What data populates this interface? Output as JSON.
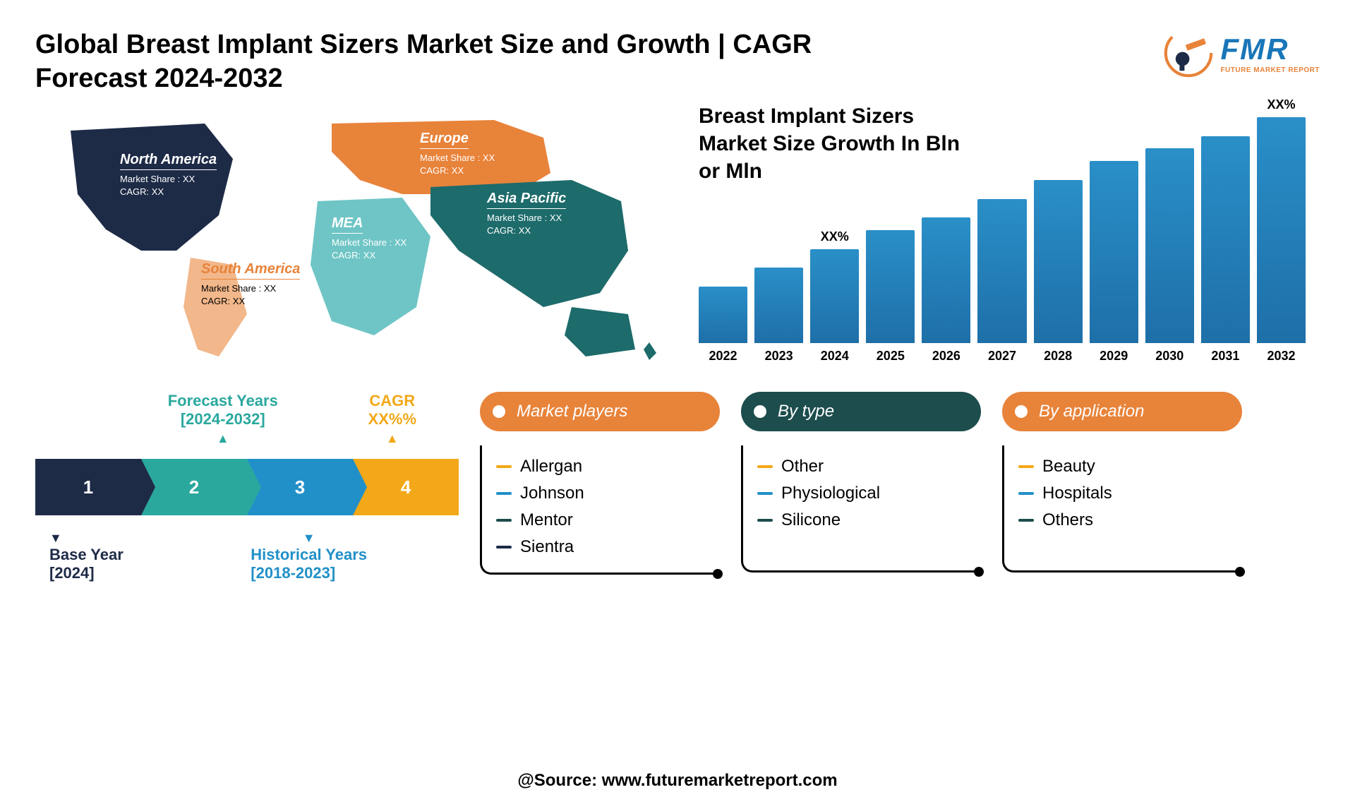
{
  "title": "Global Breast Implant Sizers Market Size and Growth | CAGR Forecast 2024-2032",
  "logo": {
    "main": "FMR",
    "sub": "FUTURE MARKET REPORT"
  },
  "map": {
    "regions": [
      {
        "name": "North America",
        "share": "Market Share : XX",
        "cagr": "CAGR: XX",
        "color": "#1e2b47"
      },
      {
        "name": "South America",
        "share": "Market Share : XX",
        "cagr": "CAGR: XX",
        "color": "#f2b78a"
      },
      {
        "name": "Europe",
        "share": "Market Share : XX",
        "cagr": "CAGR: XX",
        "color": "#e8833a"
      },
      {
        "name": "MEA",
        "share": "Market Share : XX",
        "cagr": "CAGR: XX",
        "color": "#6fc5c5"
      },
      {
        "name": "Asia Pacific",
        "share": "Market Share : XX",
        "cagr": "CAGR: XX",
        "color": "#1d6b6b"
      }
    ]
  },
  "barChart": {
    "title": "Breast Implant Sizers Market Size Growth In Bln or Mln",
    "type": "bar",
    "categories": [
      "2022",
      "2023",
      "2024",
      "2025",
      "2026",
      "2027",
      "2028",
      "2029",
      "2030",
      "2031",
      "2032"
    ],
    "values": [
      90,
      120,
      150,
      180,
      200,
      230,
      260,
      290,
      310,
      330,
      360
    ],
    "ylim": [
      0,
      360
    ],
    "bar_color_top": "#2a8fc8",
    "bar_color_bottom": "#1e6fa8",
    "annotations": [
      {
        "index": 2,
        "text": "XX%"
      },
      {
        "index": 10,
        "text": "XX%"
      }
    ],
    "label_fontsize": 18,
    "label_fontweight": 600,
    "background": "#ffffff"
  },
  "timeline": {
    "top": [
      {
        "label": "Forecast Years",
        "sub": "[2024-2032]",
        "color": "#2aa89e",
        "pointIndex": 2
      },
      {
        "label": "CAGR",
        "sub": "XX%%",
        "color": "#f2a818",
        "pointIndex": 4
      }
    ],
    "segments": [
      {
        "n": "1",
        "color": "#1e2b47"
      },
      {
        "n": "2",
        "color": "#2aa89e"
      },
      {
        "n": "3",
        "color": "#2190c8"
      },
      {
        "n": "4",
        "color": "#f2a818"
      }
    ],
    "bottom": [
      {
        "label": "Base Year",
        "sub": "[2024]",
        "color": "#1e2b47",
        "pointIndex": 1
      },
      {
        "label": "Historical Years",
        "sub": "[2018-2023]",
        "color": "#2190c8",
        "pointIndex": 3
      }
    ]
  },
  "cards": [
    {
      "title": "Market players",
      "header_color": "#e8833a",
      "items": [
        {
          "label": "Allergan",
          "tick": "#f2a818"
        },
        {
          "label": "Johnson",
          "tick": "#2190c8"
        },
        {
          "label": "Mentor",
          "tick": "#1d4d4d"
        },
        {
          "label": "Sientra",
          "tick": "#1e2b47"
        }
      ]
    },
    {
      "title": "By type",
      "header_color": "#1d4d4d",
      "items": [
        {
          "label": "Other",
          "tick": "#f2a818"
        },
        {
          "label": "Physiological",
          "tick": "#2190c8"
        },
        {
          "label": "Silicone",
          "tick": "#1d4d4d"
        }
      ]
    },
    {
      "title": "By application",
      "header_color": "#e8833a",
      "items": [
        {
          "label": "Beauty",
          "tick": "#f2a818"
        },
        {
          "label": "Hospitals",
          "tick": "#2190c8"
        },
        {
          "label": "Others",
          "tick": "#1d4d4d"
        }
      ]
    }
  ],
  "source": "@Source: www.futuremarketreport.com"
}
